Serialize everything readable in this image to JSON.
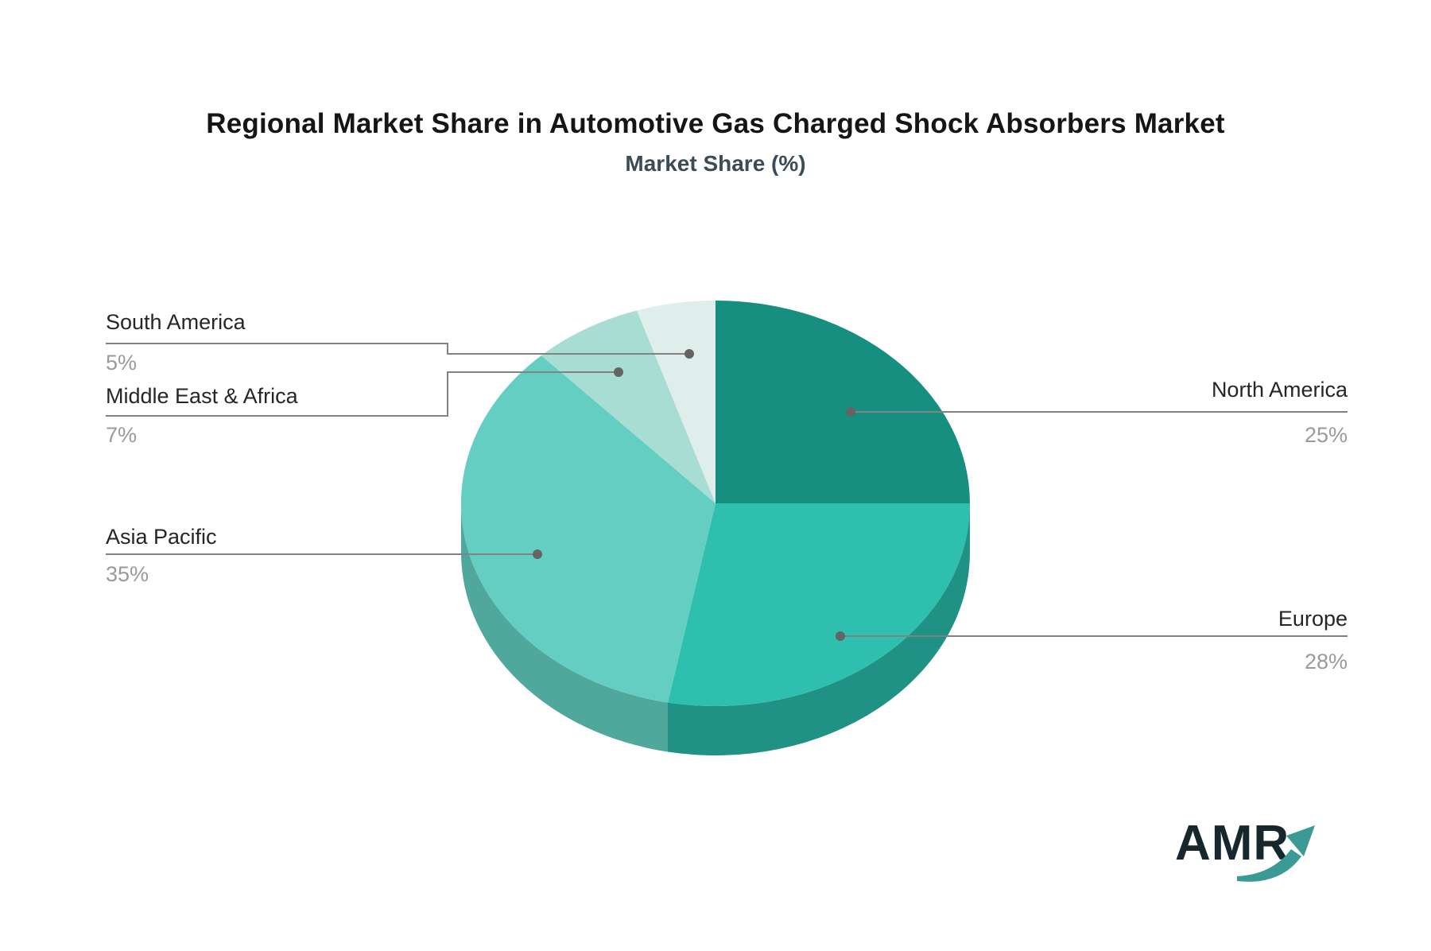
{
  "title": "Regional Market Share in Automotive Gas Charged Shock Absorbers Market",
  "subtitle": "Market Share (%)",
  "chart_data": {
    "type": "pie",
    "title": "Regional Market Share in Automotive Gas Charged Shock Absorbers Market",
    "value_label": "Market Share (%)",
    "start_angle_deg": 0,
    "direction": "clockwise",
    "effect_3d": true,
    "legend_position": "callout-labels",
    "slices": [
      {
        "label": "North America",
        "value": 25,
        "display": "25%",
        "color": "#178F80",
        "callout_side": "right"
      },
      {
        "label": "Europe",
        "value": 28,
        "display": "28%",
        "color": "#2EBFAF",
        "callout_side": "right"
      },
      {
        "label": "Asia Pacific",
        "value": 35,
        "display": "35%",
        "color": "#65CEC3",
        "callout_side": "left"
      },
      {
        "label": "Middle East & Africa",
        "value": 7,
        "display": "7%",
        "color": "#A8DDD4",
        "callout_side": "left"
      },
      {
        "label": "South America",
        "value": 5,
        "display": "5%",
        "color": "#DFEEEB",
        "callout_side": "left"
      }
    ],
    "side_colors": {
      "Europe": "#209285",
      "Asia Pacific": "#4FA89B"
    }
  },
  "style": {
    "label_color": "#262626",
    "pct_color": "#9A9A9A",
    "line_color": "#828282",
    "dot_color": "#646464",
    "title_color": "#151515",
    "subtitle_color": "#3C4C57"
  },
  "logo": {
    "text": "AMR",
    "color": "#16282E",
    "arrow_color": "#3B9A94"
  }
}
